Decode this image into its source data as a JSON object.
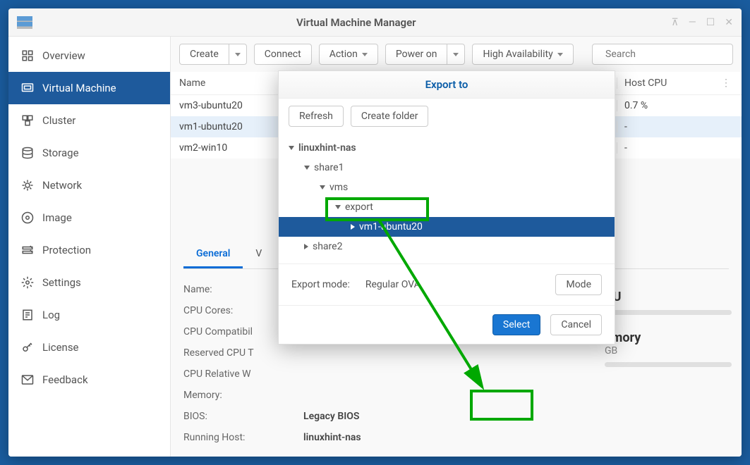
{
  "window": {
    "title": "Virtual Machine Manager"
  },
  "sidebar": {
    "items": [
      {
        "label": "Overview",
        "icon": "overview"
      },
      {
        "label": "Virtual Machine",
        "icon": "vm",
        "active": true
      },
      {
        "label": "Cluster",
        "icon": "cluster"
      },
      {
        "label": "Storage",
        "icon": "storage"
      },
      {
        "label": "Network",
        "icon": "network"
      },
      {
        "label": "Image",
        "icon": "image"
      },
      {
        "label": "Protection",
        "icon": "protection"
      },
      {
        "label": "Settings",
        "icon": "settings"
      },
      {
        "label": "Log",
        "icon": "log"
      },
      {
        "label": "License",
        "icon": "license"
      },
      {
        "label": "Feedback",
        "icon": "feedback"
      }
    ]
  },
  "toolbar": {
    "create": "Create",
    "connect": "Connect",
    "action": "Action",
    "poweron": "Power on",
    "ha": "High Availability",
    "search_placeholder": "Search"
  },
  "table": {
    "col_name": "Name",
    "col_cpu": "Host CPU",
    "rows": [
      {
        "name": "vm3-ubuntu20",
        "cpu": "0.7 %"
      },
      {
        "name": "vm1-ubuntu20",
        "cpu": "-",
        "selected": true
      },
      {
        "name": "vm2-win10",
        "cpu": "-"
      }
    ]
  },
  "tabs": {
    "general": "General",
    "second": "V"
  },
  "details": {
    "rows": [
      {
        "label": "Name:",
        "value": ""
      },
      {
        "label": "CPU Cores:",
        "value": ""
      },
      {
        "label": "CPU Compatibil",
        "value": ""
      },
      {
        "label": "Reserved CPU T",
        "value": ""
      },
      {
        "label": "CPU Relative W",
        "value": ""
      },
      {
        "label": "Memory:",
        "value": ""
      },
      {
        "label": "BIOS:",
        "value": "Legacy BIOS"
      },
      {
        "label": "Running Host:",
        "value": "linuxhint-nas"
      }
    ]
  },
  "stats": {
    "cpu_title": "PU",
    "mem_title": "emory",
    "mem_sub": "GB"
  },
  "modal": {
    "title": "Export to",
    "refresh": "Refresh",
    "create_folder": "Create folder",
    "tree": [
      {
        "label": "linuxhint-nas",
        "indent": 0,
        "expanded": true
      },
      {
        "label": "share1",
        "indent": 1,
        "expanded": true
      },
      {
        "label": "vms",
        "indent": 2,
        "expanded": true
      },
      {
        "label": "export",
        "indent": 3,
        "expanded": true
      },
      {
        "label": "vm1-ubuntu20",
        "indent": 4,
        "selected": true,
        "expanded": false
      },
      {
        "label": "share2",
        "indent": 1,
        "expanded": false
      }
    ],
    "export_mode_label": "Export mode:",
    "export_mode_value": "Regular OVA",
    "mode_btn": "Mode",
    "select_btn": "Select",
    "cancel_btn": "Cancel"
  },
  "colors": {
    "accent": "#1e5a9c",
    "highlight": "#00a800",
    "primary_btn": "#1976d2"
  }
}
